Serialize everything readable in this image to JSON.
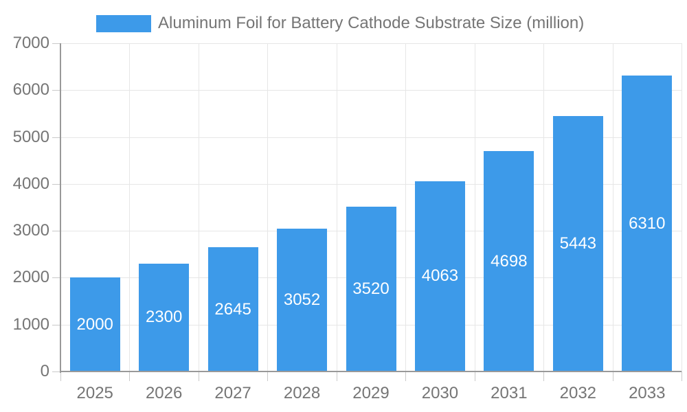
{
  "legend": {
    "title": "Aluminum Foil for Battery Cathode Substrate Size (million)"
  },
  "chart_data": {
    "type": "bar",
    "title": "Aluminum Foil for Battery Cathode Substrate Size (million)",
    "categories": [
      "2025",
      "2026",
      "2027",
      "2028",
      "2029",
      "2030",
      "2031",
      "2032",
      "2033"
    ],
    "values": [
      2000,
      2300,
      2645,
      3052,
      3520,
      4063,
      4698,
      5443,
      6310
    ],
    "xlabel": "",
    "ylabel": "",
    "ylim": [
      0,
      7000
    ],
    "ytick_step": 1000,
    "ytick_labels": [
      "0",
      "1000",
      "2000",
      "3000",
      "4000",
      "5000",
      "6000",
      "7000"
    ],
    "grid": true,
    "legend_position": "top",
    "value_labels": "inside-center",
    "colors": {
      "bar": "#3D9AE9",
      "value_text": "#FFFFFF",
      "axis_text": "#757575",
      "gridline": "#E6E6E6",
      "axis_line": "#999999",
      "tick": "#C9C9C9",
      "background": "#FFFFFF"
    }
  }
}
